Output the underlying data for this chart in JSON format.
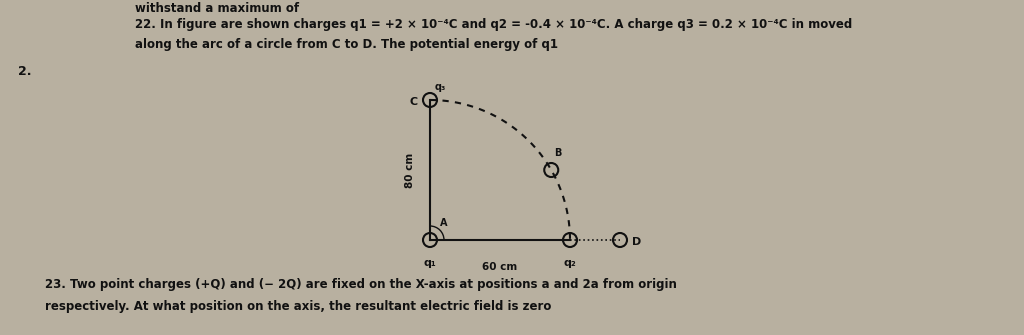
{
  "bg_color": "#b8b0a0",
  "text_color": "#111111",
  "title_line1": "22. In figure are shown charges q1 = +2 × 10⁻⁴C and q2 = -0.4 × 10⁻⁴C. A charge q3 = 0.2 × 10⁻⁴C in moved",
  "title_line2": "along the arc of a circle from C to D. The potential energy of q1",
  "left_num": "2.",
  "bottom_line1": "23. Two point charges (+Q) and (− 2Q) are fixed on the X-axis at positions a and 2a from origin",
  "bottom_line2": "respectively. At what position on the axis, the resultant electric field is zero",
  "label_q1": "q₁",
  "label_q2": "q₂",
  "label_q3": "q₃",
  "label_C": "C",
  "label_D": "D",
  "label_A": "A",
  "label_B": "B",
  "label_60cm": "60 cm",
  "label_80cm": "80 cm",
  "line_color": "#111111",
  "dashed_color": "#111111"
}
